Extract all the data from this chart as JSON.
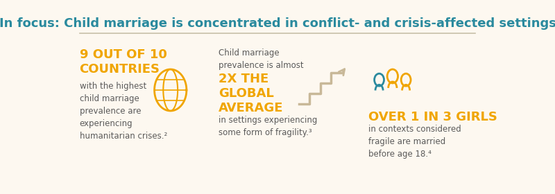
{
  "bg_color": "#fdf8f0",
  "title": "In focus: Child marriage is concentrated in conflict- and crisis-affected settings",
  "title_color": "#2a8a9e",
  "title_fontsize": 13,
  "divider_color": "#c8c0a8",
  "stat1_big": "9 OUT OF 10\nCOUNTRIES",
  "stat1_big_color": "#f0a500",
  "stat1_small": "with the highest\nchild marriage\nprevalence are\nexperiencing\nhumanitarian crises.²",
  "stat1_small_color": "#5a5a5a",
  "stat2_intro": "Child marriage\nprevalence is almost",
  "stat2_intro_color": "#5a5a5a",
  "stat2_big": "2X THE\nGLOBAL\nAVERAGE",
  "stat2_big_color": "#f0a500",
  "stat2_small": "in settings experiencing\nsome form of fragility.³",
  "stat2_small_color": "#5a5a5a",
  "stat3_big": "OVER 1 IN 3 GIRLS",
  "stat3_big_color": "#f0a500",
  "stat3_small": "in contexts considered\nfragile are married\nbefore age 18.⁴",
  "stat3_small_color": "#5a5a5a",
  "globe_color": "#f0a500",
  "arrow_color": "#c8b898",
  "person_color_teal": "#2a8a9e",
  "person_color_gold": "#f0a500"
}
